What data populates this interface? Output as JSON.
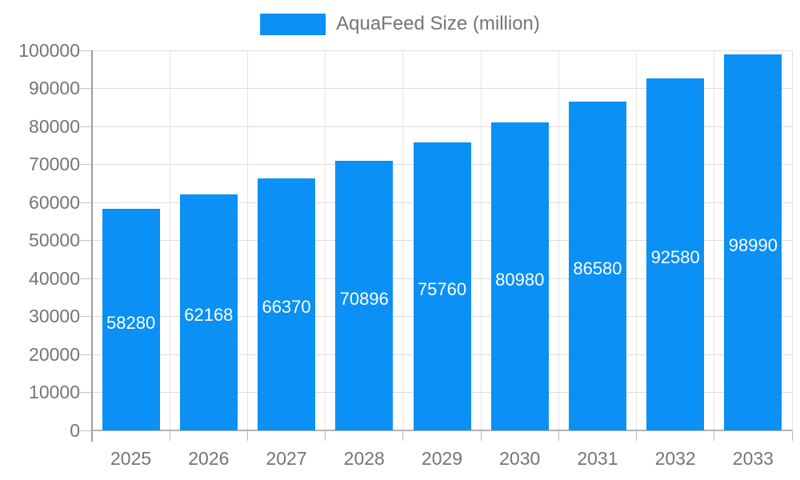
{
  "chart_data": {
    "type": "bar",
    "title": "AquaFeed Size (million)",
    "series_name": "AquaFeed Size (million)",
    "categories": [
      "2025",
      "2026",
      "2027",
      "2028",
      "2029",
      "2030",
      "2031",
      "2032",
      "2033"
    ],
    "values": [
      58280,
      62168,
      66370,
      70896,
      75760,
      80980,
      86580,
      92580,
      98990
    ],
    "value_labels": [
      "58280",
      "62168",
      "66370",
      "70896",
      "75760",
      "80980",
      "86580",
      "92580",
      "98990"
    ],
    "y_ticks": [
      0,
      10000,
      20000,
      30000,
      40000,
      50000,
      60000,
      70000,
      80000,
      90000,
      100000
    ],
    "ylim": [
      0,
      100000
    ],
    "xlabel": "",
    "ylabel": "",
    "grid": true,
    "legend_position": "top-center",
    "bar_color": "#0b90f5",
    "value_label_color": "#ffffff",
    "axis_text_color": "#757575"
  }
}
